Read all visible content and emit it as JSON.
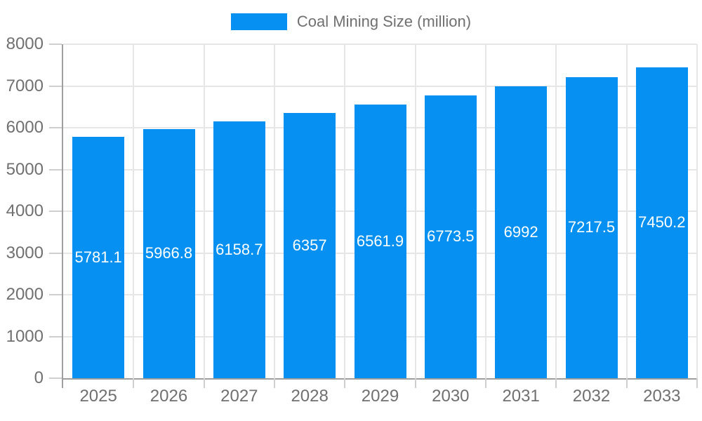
{
  "legend": {
    "label": "Coal Mining Size (million)"
  },
  "colors": {
    "bar": "#0590f2",
    "axis_line": "#9e9e9e",
    "grid_line": "#e6e6e6",
    "tick_mark": "#cfcfcf",
    "text": "#707070",
    "bar_label_text": "#ffffff",
    "background": "#ffffff"
  },
  "chart_data": {
    "type": "bar",
    "title": "Coal Mining Size (million)",
    "categories": [
      "2025",
      "2026",
      "2027",
      "2028",
      "2029",
      "2030",
      "2031",
      "2032",
      "2033"
    ],
    "values": [
      5781.1,
      5966.8,
      6158.7,
      6357,
      6561.9,
      6773.5,
      6992,
      7217.5,
      7450.2
    ],
    "bar_labels": [
      "5781.1",
      "5966.8",
      "6158.7",
      "6357",
      "6561.9",
      "6773.5",
      "6992",
      "7217.5",
      "7450.2"
    ],
    "xlabel": "",
    "ylabel": "",
    "ylim": [
      0,
      8000
    ],
    "ytick_step": 1000,
    "ytick_labels": [
      "0",
      "1000",
      "2000",
      "3000",
      "4000",
      "5000",
      "6000",
      "7000",
      "8000"
    ],
    "grid": true,
    "legend_position": "top",
    "value_label_position": "center-of-bar",
    "value_label_color": "white"
  }
}
